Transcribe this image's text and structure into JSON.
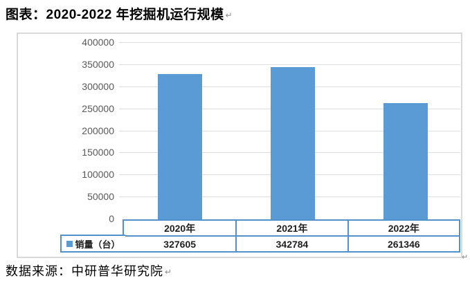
{
  "title": {
    "text": "图表：2020-2022 年挖掘机运行规模",
    "paragraph_mark": "↵"
  },
  "source": {
    "text": "数据来源：中研普华研究院",
    "paragraph_mark": "↵"
  },
  "table_paragraph_mark": "↵",
  "legend": {
    "label": "销量（台）"
  },
  "colors": {
    "bar": "#5b9bd5",
    "table_border": "#5291cc",
    "gridline": "#e0e0e0",
    "axis_label": "#595959",
    "frame_border": "#d9d9d9",
    "text": "#1f1f1f"
  },
  "chart_data": {
    "type": "bar",
    "title": "图表：2020-2022 年挖掘机运行规模",
    "categories": [
      "2020年",
      "2021年",
      "2022年"
    ],
    "series": [
      {
        "name": "销量（台）",
        "values": [
          327605,
          342784,
          261346
        ]
      }
    ],
    "xlabel": "",
    "ylabel": "",
    "ylim": [
      0,
      400000
    ],
    "y_ticks": [
      0,
      50000,
      100000,
      150000,
      200000,
      250000,
      300000,
      350000,
      400000
    ],
    "grid": true,
    "legend_position": "data-table-left",
    "data_table": true,
    "source_note": "数据来源：中研普华研究院"
  }
}
